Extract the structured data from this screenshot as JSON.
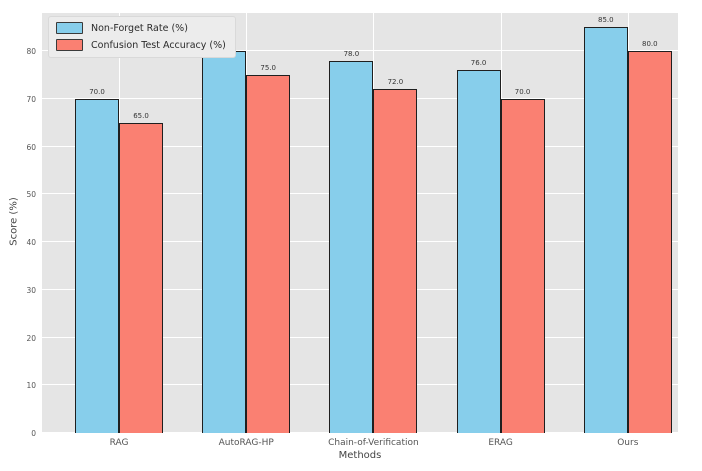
{
  "figure": {
    "background": "#ffffff",
    "plot_background": "#e5e5e5",
    "grid_color": "#ffffff",
    "bar_edge_color": "#1f1f1f",
    "tick_color": "#555555",
    "label_color": "#444444"
  },
  "chart_data": {
    "type": "bar",
    "title": "",
    "xlabel": "Methods",
    "ylabel": "Score (%)",
    "categories": [
      "RAG",
      "AutoRAG-HP",
      "Chain-of-Verification",
      "ERAG",
      "Ours"
    ],
    "series": [
      {
        "name": "Non-Forget Rate (%)",
        "color": "#87CEEB",
        "values": [
          70,
          80,
          78,
          76,
          85
        ],
        "labels": [
          "70.0",
          "80.0",
          "78.0",
          "76.0",
          "85.0"
        ]
      },
      {
        "name": "Confusion Test Accuracy (%)",
        "color": "#FA8072",
        "values": [
          65,
          75,
          72,
          70,
          80
        ],
        "labels": [
          "65.0",
          "75.0",
          "72.0",
          "70.0",
          "80.0"
        ]
      }
    ],
    "ylim": [
      0,
      88
    ],
    "yticks": [
      0,
      10,
      20,
      30,
      40,
      50,
      60,
      70,
      80
    ],
    "grid": true,
    "legend_position": "upper left",
    "note": "value label 80.0 of series 1 category AutoRAG-HP is hidden behind legend"
  }
}
